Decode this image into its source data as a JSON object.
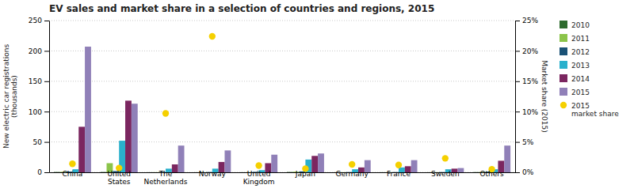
{
  "chart_data": {
    "type": "bar",
    "title": "EV sales and market share in a selection of countries and regions, 2015",
    "categories": [
      "China",
      "United\nStates",
      "The\nNetherlands",
      "Norway",
      "United\nKingdom",
      "Japan",
      "Germany",
      "France",
      "Sweden",
      "Others"
    ],
    "series": [
      {
        "name": "2010",
        "color": "#2e6b2e",
        "values": [
          0.5,
          0.5,
          0.1,
          0.1,
          0.1,
          0.5,
          0.1,
          0.1,
          0.1,
          0.3
        ]
      },
      {
        "name": "2011",
        "color": "#8bc44a",
        "values": [
          0.8,
          15,
          0.2,
          0.2,
          0.2,
          1.0,
          0.2,
          0.2,
          0.2,
          0.5
        ]
      },
      {
        "name": "2012",
        "color": "#1a5276",
        "values": [
          1.2,
          2.0,
          0.5,
          0.5,
          0.8,
          1.5,
          0.4,
          0.4,
          0.4,
          1.2
        ]
      },
      {
        "name": "2013",
        "color": "#2ab0cc",
        "values": [
          5,
          52,
          6,
          6,
          3.5,
          21,
          5,
          8,
          5,
          5
        ]
      },
      {
        "name": "2014",
        "color": "#7b2660",
        "values": [
          75,
          118,
          13,
          17,
          15,
          27,
          8,
          10,
          6,
          19
        ]
      },
      {
        "name": "2015",
        "color": "#9080b8",
        "values": [
          207,
          113,
          44,
          36,
          29,
          31,
          20,
          20,
          7,
          44
        ]
      },
      {
        "name": "2015\nmarket share",
        "type": "scatter",
        "axis": "y2",
        "marker": "circle",
        "color": "#f5d000",
        "values": [
          1.4,
          0.7,
          9.7,
          22.4,
          1.1,
          0.6,
          1.3,
          1.2,
          2.3,
          0.5
        ]
      }
    ],
    "y_label": "New electric car registrations\n(thousands)",
    "y2_label": "Market share (2015)",
    "ylim": [
      0,
      250
    ],
    "yticks": [
      0,
      50,
      100,
      150,
      200,
      250
    ],
    "y2lim": [
      0,
      25
    ],
    "y2ticks": [
      {
        "value": 0,
        "label": "0%"
      },
      {
        "value": 5,
        "label": "5%"
      },
      {
        "value": 10,
        "label": "10%"
      },
      {
        "value": 15,
        "label": "15%"
      },
      {
        "value": 20,
        "label": "20%"
      },
      {
        "value": 25,
        "label": "25%"
      }
    ],
    "grid": true,
    "legend": "right"
  }
}
